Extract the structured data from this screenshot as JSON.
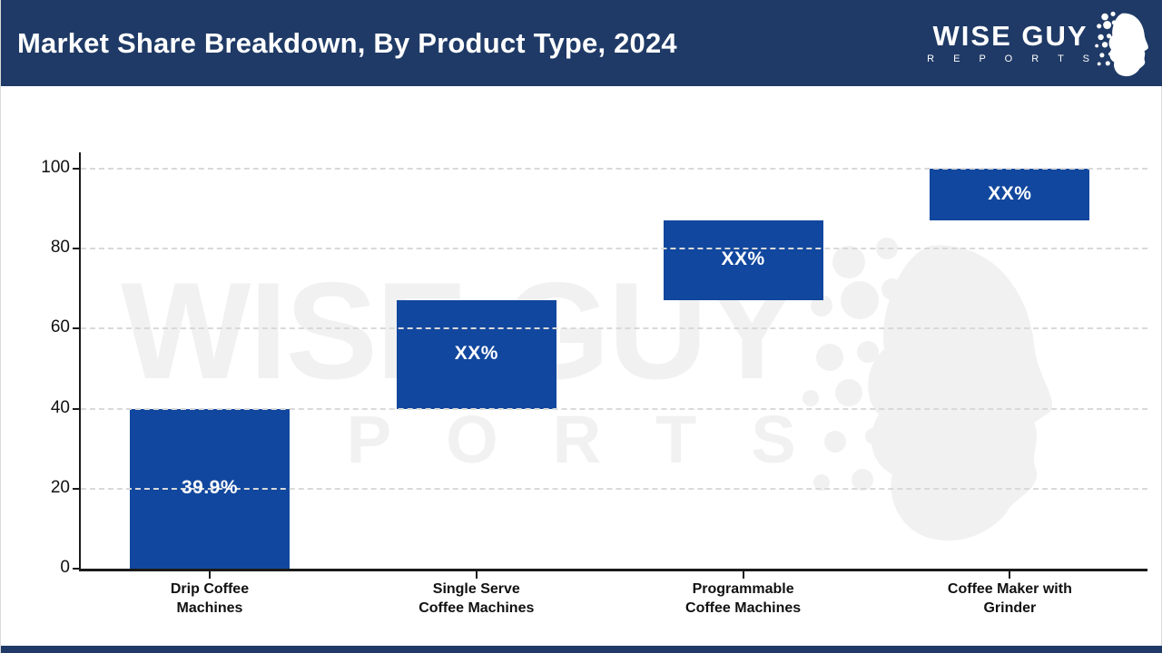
{
  "header": {
    "title": "Market Share Breakdown, By Product Type, 2024",
    "bg_color": "#1F3A66",
    "logo": {
      "line1": "WISE GUY",
      "line2": "R E P O R T S"
    }
  },
  "watermark": {
    "line1": "WISE GUY",
    "line2": "REPORTS"
  },
  "colors": {
    "header_bg": "#1F3A66",
    "footer_bg": "#1F3A66",
    "bar_blue": "#11479E",
    "grid_gray": "#D9D9D9",
    "axis_black": "#1A1A1A",
    "watermark_gray": "#F1F1F2",
    "value_label_white": "#FFFFFF"
  },
  "chart_data": {
    "type": "bar",
    "subtype": "floating-waterfall",
    "title": "Market Share Breakdown, By Product Type, 2024",
    "categories": [
      "Drip Coffee Machines",
      "Single Serve Coffee Machines",
      "Programmable Coffee Machines",
      "Coffee Maker with Grinder"
    ],
    "bars": [
      {
        "category": "Drip Coffee Machines",
        "label_lines": [
          "Drip Coffee",
          "Machines"
        ],
        "start": 0,
        "end": 39.9,
        "value_label": "39.9%"
      },
      {
        "category": "Single Serve Coffee Machines",
        "label_lines": [
          "Single Serve",
          "Coffee Machines"
        ],
        "start": 40,
        "end": 67.1,
        "value_label": "XX%"
      },
      {
        "category": "Programmable Coffee Machines",
        "label_lines": [
          "Programmable",
          "Coffee Machines"
        ],
        "start": 67.1,
        "end": 87.1,
        "value_label": "XX%"
      },
      {
        "category": "Coffee Maker with Grinder",
        "label_lines": [
          "Coffee Maker with",
          "Grinder"
        ],
        "start": 87.1,
        "end": 99.9,
        "value_label": "XX%"
      }
    ],
    "xlabel": "",
    "ylabel": "",
    "ylim": [
      0,
      105
    ],
    "yticks": [
      0,
      20,
      40,
      60,
      80,
      100
    ],
    "grid": "horizontal dashed",
    "legend": "none",
    "bar_color": "#11479E"
  }
}
